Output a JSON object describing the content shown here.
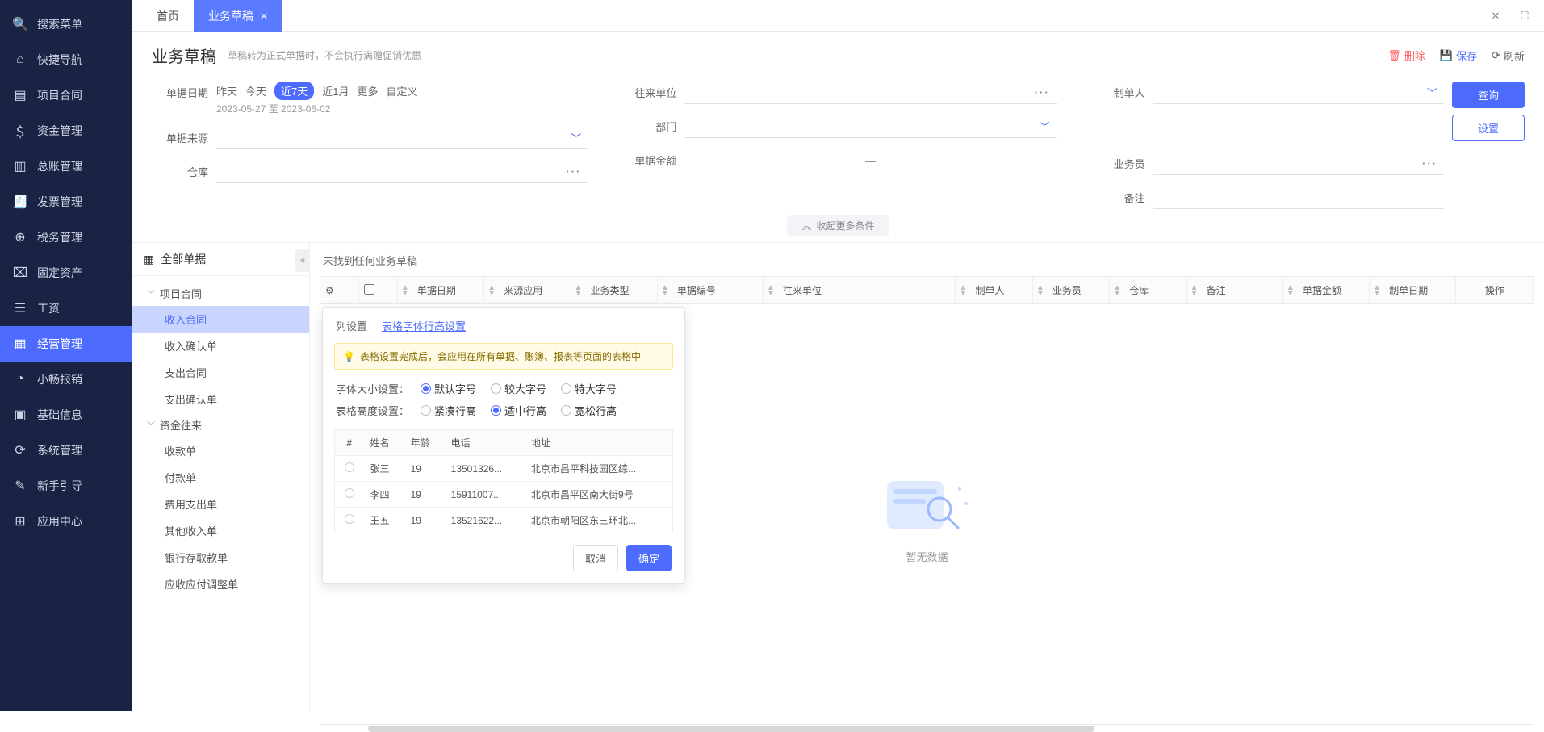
{
  "sidebar": {
    "items": [
      {
        "label": "搜索菜单",
        "icon": "search"
      },
      {
        "label": "快捷导航",
        "icon": "home"
      },
      {
        "label": "项目合同",
        "icon": "file"
      },
      {
        "label": "资金管理",
        "icon": "money"
      },
      {
        "label": "总账管理",
        "icon": "book"
      },
      {
        "label": "发票管理",
        "icon": "invoice"
      },
      {
        "label": "税务管理",
        "icon": "tax"
      },
      {
        "label": "固定资产",
        "icon": "asset"
      },
      {
        "label": "工资",
        "icon": "wage"
      },
      {
        "label": "经营管理",
        "icon": "manage",
        "active": true
      },
      {
        "label": "小畅报销",
        "icon": "expense"
      },
      {
        "label": "基础信息",
        "icon": "base"
      },
      {
        "label": "系统管理",
        "icon": "system"
      },
      {
        "label": "新手引导",
        "icon": "guide"
      },
      {
        "label": "应用中心",
        "icon": "apps"
      }
    ]
  },
  "tabs": {
    "items": [
      {
        "label": "首页",
        "closable": false
      },
      {
        "label": "业务草稿",
        "closable": true,
        "active": true
      }
    ]
  },
  "page": {
    "title": "业务草稿",
    "subtitle": "草稿转为正式单据时，不会执行满赠促销优惠"
  },
  "header_actions": {
    "delete": "删除",
    "save": "保存",
    "refresh": "刷新"
  },
  "filters": {
    "date_label": "单据日期",
    "date_quick": {
      "yesterday": "昨天",
      "today": "今天",
      "week": "近7天",
      "month": "近1月",
      "more": "更多",
      "custom": "自定义"
    },
    "date_range": "2023-05-27 至 2023-06-02",
    "source_label": "单据来源",
    "warehouse_label": "仓库",
    "partner_label": "往来单位",
    "dept_label": "部门",
    "amount_label": "单据金额",
    "maker_label": "制单人",
    "sales_label": "业务员",
    "remark_label": "备注",
    "query_btn": "查询",
    "settings_btn": "设置",
    "collapse": "收起更多条件"
  },
  "tree": {
    "header": "全部单据",
    "groups": [
      {
        "title": "项目合同",
        "items": [
          "收入合同",
          "收入确认单",
          "支出合同",
          "支出确认单"
        ],
        "activeIndex": 0
      },
      {
        "title": "资金往来",
        "items": [
          "收款单",
          "付款单",
          "费用支出单",
          "其他收入单",
          "银行存取款单",
          "应收应付调整单"
        ]
      }
    ]
  },
  "table": {
    "no_data_hint": "未找到任何业务草稿",
    "columns": [
      "单据日期",
      "来源应用",
      "业务类型",
      "单据编号",
      "往来单位",
      "制单人",
      "业务员",
      "仓库",
      "备注",
      "单据金额",
      "制单日期",
      "操作"
    ],
    "empty_text": "暂无数据"
  },
  "settings": {
    "tab_cols": "列设置",
    "tab_style": "表格字体行高设置",
    "hint": "表格设置完成后，会应用在所有单据、账簿、报表等页面的表格中",
    "font_label": "字体大小设置：",
    "font_opts": [
      "默认字号",
      "较大字号",
      "特大字号"
    ],
    "height_label": "表格高度设置：",
    "height_opts": [
      "紧凑行高",
      "适中行高",
      "宽松行高"
    ],
    "preview_cols": [
      "#",
      "姓名",
      "年龄",
      "电话",
      "地址"
    ],
    "preview_rows": [
      [
        "张三",
        "19",
        "13501326...",
        "北京市昌平科技园区综..."
      ],
      [
        "李四",
        "19",
        "15911007...",
        "北京市昌平区南大街9号"
      ],
      [
        "王五",
        "19",
        "13521622...",
        "北京市朝阳区东三环北..."
      ]
    ],
    "cancel": "取消",
    "ok": "确定"
  },
  "colors": {
    "sidebar_bg": "#1a2344",
    "primary": "#4d6bff",
    "active_tab": "#5a7bff",
    "tree_active_bg": "#c9d5ff"
  }
}
